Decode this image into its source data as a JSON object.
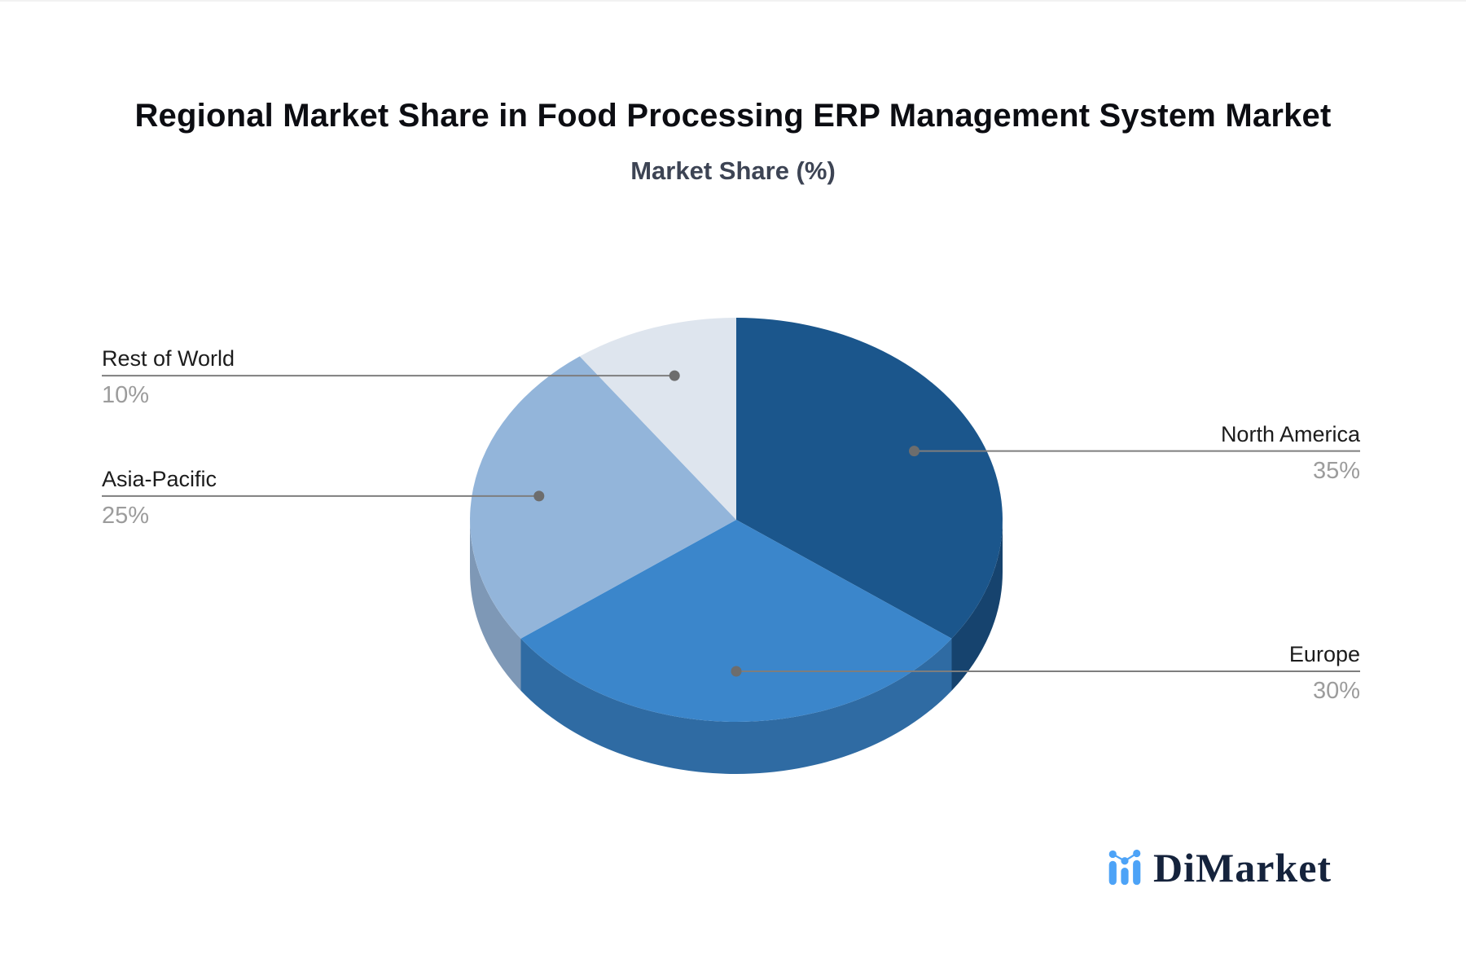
{
  "title": "Regional Market Share in Food Processing ERP Management System Market",
  "subtitle": "Market Share (%)",
  "logo": {
    "text": "DiMarket",
    "icon": "bar-chart-with-dots-icon",
    "icon_color": "#4da3f7",
    "text_color": "#15233c"
  },
  "chart_data": {
    "type": "pie",
    "is_3d": true,
    "title": "Regional Market Share in Food Processing ERP Management System Market",
    "subtitle": "Market Share (%)",
    "unit": "%",
    "start_angle_deg": 0,
    "direction": "clockwise",
    "slices": [
      {
        "name": "North America",
        "value": 35,
        "pct_label": "35%",
        "color": "#1b568c",
        "side_color": "#16436e",
        "label_side": "right"
      },
      {
        "name": "Europe",
        "value": 30,
        "pct_label": "30%",
        "color": "#3b86cb",
        "side_color": "#2f6ba3",
        "label_side": "right"
      },
      {
        "name": "Asia-Pacific",
        "value": 25,
        "pct_label": "25%",
        "color": "#93b5da",
        "side_color": "#7e98b6",
        "label_side": "left"
      },
      {
        "name": "Rest of World",
        "value": 10,
        "pct_label": "10%",
        "color": "#dee5ee",
        "side_color": "#c4cdd9",
        "label_side": "left"
      }
    ],
    "leader_line_color": "#7e7e7e",
    "leader_dot_color": "#6d6d6d"
  }
}
